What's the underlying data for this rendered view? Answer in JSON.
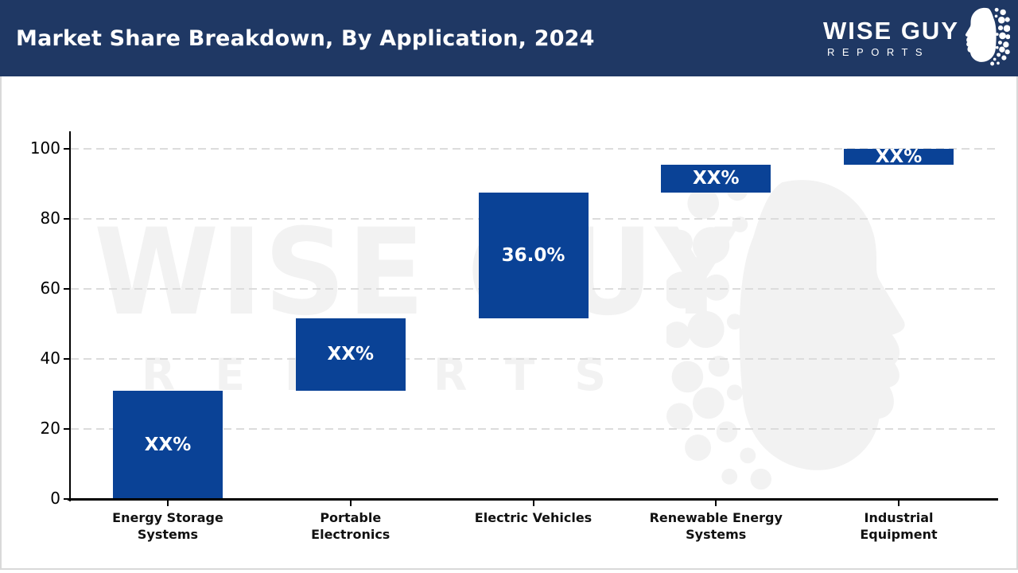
{
  "header": {
    "title": "Market Share Breakdown, By Application, 2024",
    "logo": {
      "line1": "WISE GUY",
      "line2": "REPORTS"
    }
  },
  "watermark": {
    "line1": "WISE GUY",
    "line2": "REPORTS"
  },
  "chart_data": {
    "type": "bar",
    "variant": "waterfall",
    "title": "Market Share Breakdown, By Application, 2024",
    "categories": [
      "Energy Storage Systems",
      "Portable Electronics",
      "Electric Vehicles",
      "Renewable Energy Systems",
      "Industrial Equipment"
    ],
    "category_label_lines": [
      [
        "Energy Storage",
        "Systems"
      ],
      [
        "Portable",
        "Electronics"
      ],
      [
        "Electric Vehicles"
      ],
      [
        "Renewable Energy",
        "Systems"
      ],
      [
        "Industrial",
        "Equipment"
      ]
    ],
    "segments": [
      {
        "category": "Energy Storage Systems",
        "start": 0,
        "end": 31,
        "label": "XX%"
      },
      {
        "category": "Portable Electronics",
        "start": 31,
        "end": 51.5,
        "label": "XX%"
      },
      {
        "category": "Electric Vehicles",
        "start": 51.5,
        "end": 87.5,
        "label": "36.0%"
      },
      {
        "category": "Renewable Energy Systems",
        "start": 87.5,
        "end": 95.5,
        "label": "XX%"
      },
      {
        "category": "Industrial Equipment",
        "start": 95.5,
        "end": 100,
        "label": "XX%"
      }
    ],
    "y_ticks": [
      0,
      20,
      40,
      60,
      80,
      100
    ],
    "ylim": [
      0,
      105
    ],
    "xlabel": "",
    "ylabel": "",
    "grid": "horizontal-dashed",
    "legend": "none"
  },
  "colors": {
    "header_bg": "#1f3864",
    "bar": "#0a4296",
    "grid": "#dcdcdc",
    "axis": "#000000",
    "bar_label": "#ffffff",
    "watermark": "#f2f2f2",
    "page_bg": "#ffffff",
    "border": "#d9d9d9"
  }
}
